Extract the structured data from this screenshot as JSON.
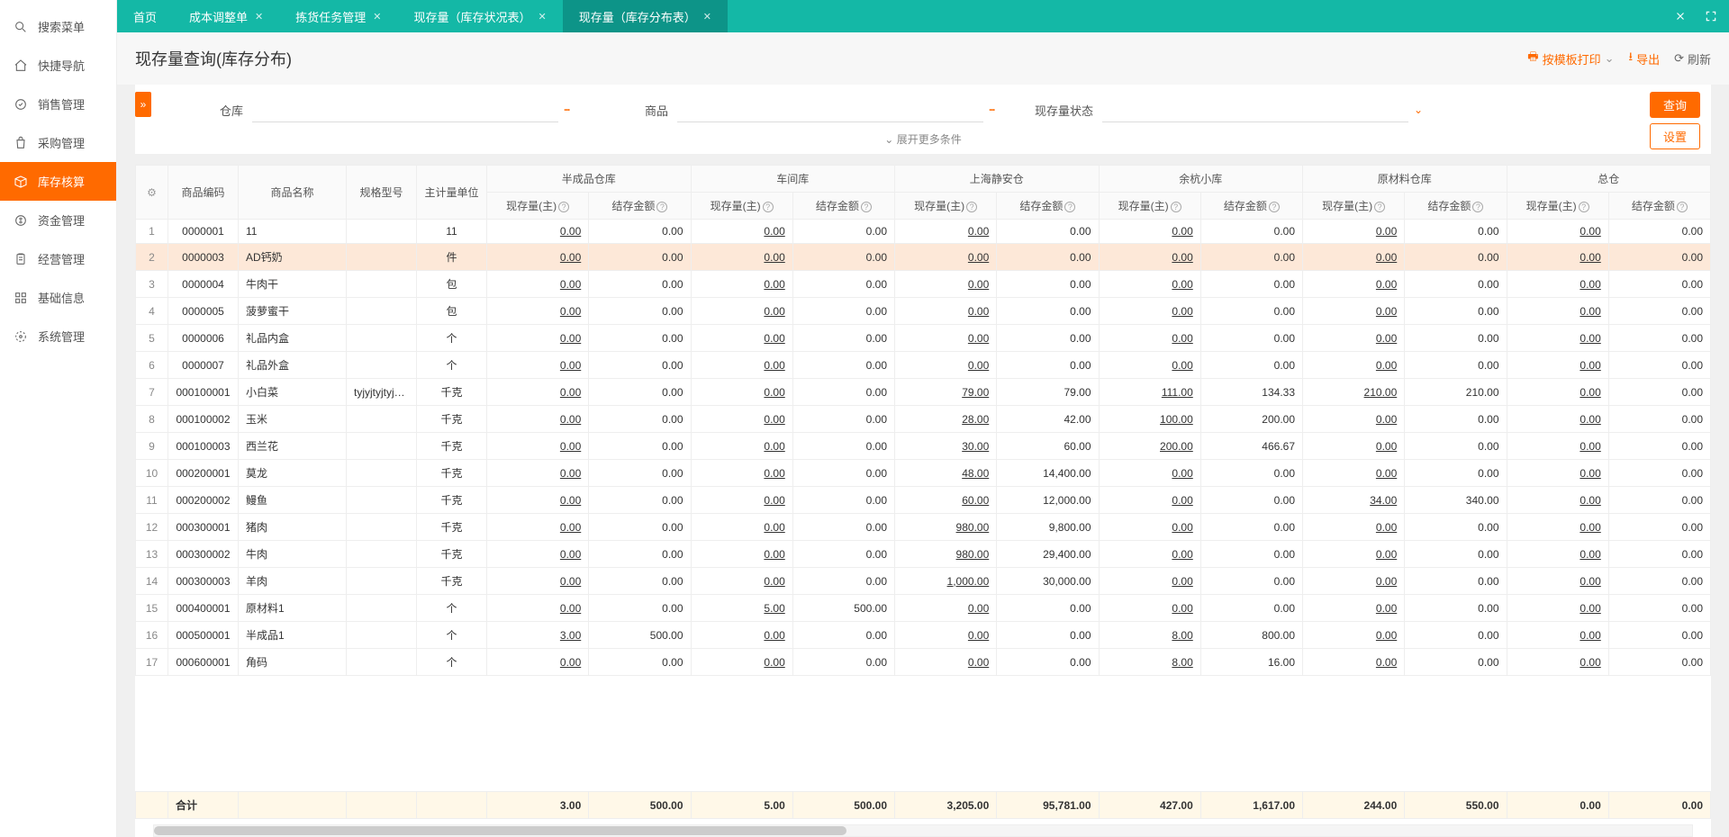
{
  "sidebar": {
    "items": [
      {
        "label": "搜索菜单",
        "icon": "search"
      },
      {
        "label": "快捷导航",
        "icon": "home"
      },
      {
        "label": "销售管理",
        "icon": "badge"
      },
      {
        "label": "采购管理",
        "icon": "bag"
      },
      {
        "label": "库存核算",
        "icon": "box",
        "active": true
      },
      {
        "label": "资金管理",
        "icon": "coin"
      },
      {
        "label": "经营管理",
        "icon": "clipboard"
      },
      {
        "label": "基础信息",
        "icon": "grid"
      },
      {
        "label": "系统管理",
        "icon": "gear-dashed"
      }
    ]
  },
  "tabs": [
    {
      "label": "首页",
      "closable": false
    },
    {
      "label": "成本调整单",
      "closable": true
    },
    {
      "label": "拣货任务管理",
      "closable": true
    },
    {
      "label": "现存量（库存状况表）",
      "closable": true
    },
    {
      "label": "现存量（库存分布表）",
      "closable": true,
      "active": true
    }
  ],
  "page": {
    "title": "现存量查询(库存分布)"
  },
  "actions": {
    "print": "按模板打印",
    "export": "导出",
    "refresh": "刷新"
  },
  "filters": {
    "warehouse_label": "仓库",
    "product_label": "商品",
    "status_label": "现存量状态",
    "query_btn": "查询",
    "settings_btn": "设置",
    "expand": "展开更多条件"
  },
  "table": {
    "gear": "⚙",
    "headers_top": [
      "商品编码",
      "商品名称",
      "规格型号",
      "主计量单位",
      "半成品仓库",
      "车间库",
      "上海静安仓",
      "余杭小库",
      "原材料仓库",
      "总仓"
    ],
    "sub_qty": "现存量(主)",
    "sub_amt": "结存金额",
    "rows": [
      {
        "idx": 1,
        "code": "0000001",
        "name": "11",
        "spec": "",
        "unit": "11",
        "vals": [
          "0.00",
          "0.00",
          "0.00",
          "0.00",
          "0.00",
          "0.00",
          "0.00",
          "0.00",
          "0.00",
          "0.00",
          "0.00",
          "0.00"
        ]
      },
      {
        "idx": 2,
        "code": "0000003",
        "name": "AD钙奶",
        "spec": "",
        "unit": "件",
        "vals": [
          "0.00",
          "0.00",
          "0.00",
          "0.00",
          "0.00",
          "0.00",
          "0.00",
          "0.00",
          "0.00",
          "0.00",
          "0.00",
          "0.00"
        ],
        "highlight": true
      },
      {
        "idx": 3,
        "code": "0000004",
        "name": "牛肉干",
        "spec": "",
        "unit": "包",
        "vals": [
          "0.00",
          "0.00",
          "0.00",
          "0.00",
          "0.00",
          "0.00",
          "0.00",
          "0.00",
          "0.00",
          "0.00",
          "0.00",
          "0.00"
        ]
      },
      {
        "idx": 4,
        "code": "0000005",
        "name": "菠萝蜜干",
        "spec": "",
        "unit": "包",
        "vals": [
          "0.00",
          "0.00",
          "0.00",
          "0.00",
          "0.00",
          "0.00",
          "0.00",
          "0.00",
          "0.00",
          "0.00",
          "0.00",
          "0.00"
        ]
      },
      {
        "idx": 5,
        "code": "0000006",
        "name": "礼品内盒",
        "spec": "",
        "unit": "个",
        "vals": [
          "0.00",
          "0.00",
          "0.00",
          "0.00",
          "0.00",
          "0.00",
          "0.00",
          "0.00",
          "0.00",
          "0.00",
          "0.00",
          "0.00"
        ]
      },
      {
        "idx": 6,
        "code": "0000007",
        "name": "礼品外盒",
        "spec": "",
        "unit": "个",
        "vals": [
          "0.00",
          "0.00",
          "0.00",
          "0.00",
          "0.00",
          "0.00",
          "0.00",
          "0.00",
          "0.00",
          "0.00",
          "0.00",
          "0.00"
        ]
      },
      {
        "idx": 7,
        "code": "000100001",
        "name": "小白菜",
        "spec": "tyjyjtyjtyjdf...",
        "unit": "千克",
        "vals": [
          "0.00",
          "0.00",
          "0.00",
          "0.00",
          "79.00",
          "79.00",
          "111.00",
          "134.33",
          "210.00",
          "210.00",
          "0.00",
          "0.00"
        ]
      },
      {
        "idx": 8,
        "code": "000100002",
        "name": "玉米",
        "spec": "",
        "unit": "千克",
        "vals": [
          "0.00",
          "0.00",
          "0.00",
          "0.00",
          "28.00",
          "42.00",
          "100.00",
          "200.00",
          "0.00",
          "0.00",
          "0.00",
          "0.00"
        ]
      },
      {
        "idx": 9,
        "code": "000100003",
        "name": "西兰花",
        "spec": "",
        "unit": "千克",
        "vals": [
          "0.00",
          "0.00",
          "0.00",
          "0.00",
          "30.00",
          "60.00",
          "200.00",
          "466.67",
          "0.00",
          "0.00",
          "0.00",
          "0.00"
        ]
      },
      {
        "idx": 10,
        "code": "000200001",
        "name": "莫龙",
        "spec": "",
        "unit": "千克",
        "vals": [
          "0.00",
          "0.00",
          "0.00",
          "0.00",
          "48.00",
          "14,400.00",
          "0.00",
          "0.00",
          "0.00",
          "0.00",
          "0.00",
          "0.00"
        ]
      },
      {
        "idx": 11,
        "code": "000200002",
        "name": "鳗鱼",
        "spec": "",
        "unit": "千克",
        "vals": [
          "0.00",
          "0.00",
          "0.00",
          "0.00",
          "60.00",
          "12,000.00",
          "0.00",
          "0.00",
          "34.00",
          "340.00",
          "0.00",
          "0.00"
        ]
      },
      {
        "idx": 12,
        "code": "000300001",
        "name": "猪肉",
        "spec": "",
        "unit": "千克",
        "vals": [
          "0.00",
          "0.00",
          "0.00",
          "0.00",
          "980.00",
          "9,800.00",
          "0.00",
          "0.00",
          "0.00",
          "0.00",
          "0.00",
          "0.00"
        ]
      },
      {
        "idx": 13,
        "code": "000300002",
        "name": "牛肉",
        "spec": "",
        "unit": "千克",
        "vals": [
          "0.00",
          "0.00",
          "0.00",
          "0.00",
          "980.00",
          "29,400.00",
          "0.00",
          "0.00",
          "0.00",
          "0.00",
          "0.00",
          "0.00"
        ]
      },
      {
        "idx": 14,
        "code": "000300003",
        "name": "羊肉",
        "spec": "",
        "unit": "千克",
        "vals": [
          "0.00",
          "0.00",
          "0.00",
          "0.00",
          "1,000.00",
          "30,000.00",
          "0.00",
          "0.00",
          "0.00",
          "0.00",
          "0.00",
          "0.00"
        ]
      },
      {
        "idx": 15,
        "code": "000400001",
        "name": "原材料1",
        "spec": "",
        "unit": "个",
        "vals": [
          "0.00",
          "0.00",
          "5.00",
          "500.00",
          "0.00",
          "0.00",
          "0.00",
          "0.00",
          "0.00",
          "0.00",
          "0.00",
          "0.00"
        ]
      },
      {
        "idx": 16,
        "code": "000500001",
        "name": "半成品1",
        "spec": "",
        "unit": "个",
        "vals": [
          "3.00",
          "500.00",
          "0.00",
          "0.00",
          "0.00",
          "0.00",
          "8.00",
          "800.00",
          "0.00",
          "0.00",
          "0.00",
          "0.00"
        ]
      },
      {
        "idx": 17,
        "code": "000600001",
        "name": "角码",
        "spec": "",
        "unit": "个",
        "vals": [
          "0.00",
          "0.00",
          "0.00",
          "0.00",
          "0.00",
          "0.00",
          "8.00",
          "16.00",
          "0.00",
          "0.00",
          "0.00",
          "0.00"
        ]
      }
    ],
    "footer": {
      "label": "合计",
      "vals": [
        "3.00",
        "500.00",
        "5.00",
        "500.00",
        "3,205.00",
        "95,781.00",
        "427.00",
        "1,617.00",
        "244.00",
        "550.00",
        "0.00",
        "0.00"
      ]
    }
  },
  "colors": {
    "accent": "#ff6a00",
    "teal": "#14b8a6",
    "alehighlight": "#fde8d8",
    "footer_bg": "#fff8e8"
  }
}
